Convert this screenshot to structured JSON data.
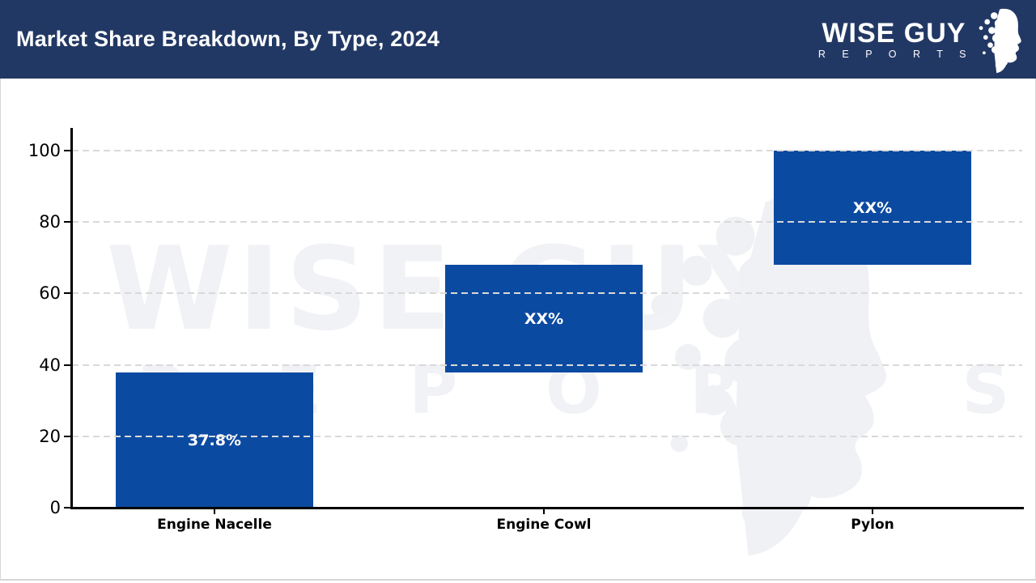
{
  "header": {
    "title": "Market Share Breakdown, By Type, 2024",
    "logo": {
      "name": "WISE GUY",
      "sub": "R E P O R T S"
    }
  },
  "watermark": {
    "line1": "WISE GUY",
    "line2": "R E P O R T S"
  },
  "chart_data": {
    "type": "bar",
    "subtype": "floating-segment (stacked waterfall of market share)",
    "title": "Market Share Breakdown, By Type, 2024",
    "categories": [
      "Engine Nacelle",
      "Engine Cowl",
      "Pylon"
    ],
    "bars": [
      {
        "category": "Engine Nacelle",
        "start": 0,
        "end": 37.8,
        "label": "37.8%"
      },
      {
        "category": "Engine Cowl",
        "start": 37.8,
        "end": 68,
        "label": "XX%"
      },
      {
        "category": "Pylon",
        "start": 68,
        "end": 100,
        "label": "XX%"
      }
    ],
    "ylim": [
      0,
      100
    ],
    "yticks": [
      "0",
      "20",
      "40",
      "60",
      "80",
      "100"
    ],
    "ytick_values": [
      0,
      20,
      40,
      60,
      80,
      100
    ],
    "grid": {
      "horizontal": true,
      "style": "dashed",
      "color": "#d9d9d9",
      "above_bars": true
    },
    "bar_color": "#0b4aa1",
    "value_label_color": "#ffffff",
    "xlabel": "",
    "ylabel": "",
    "legend": "none"
  },
  "colors": {
    "header_bg": "#223864",
    "bar": "#0b4aa1",
    "watermark": "#f1f2f5"
  }
}
